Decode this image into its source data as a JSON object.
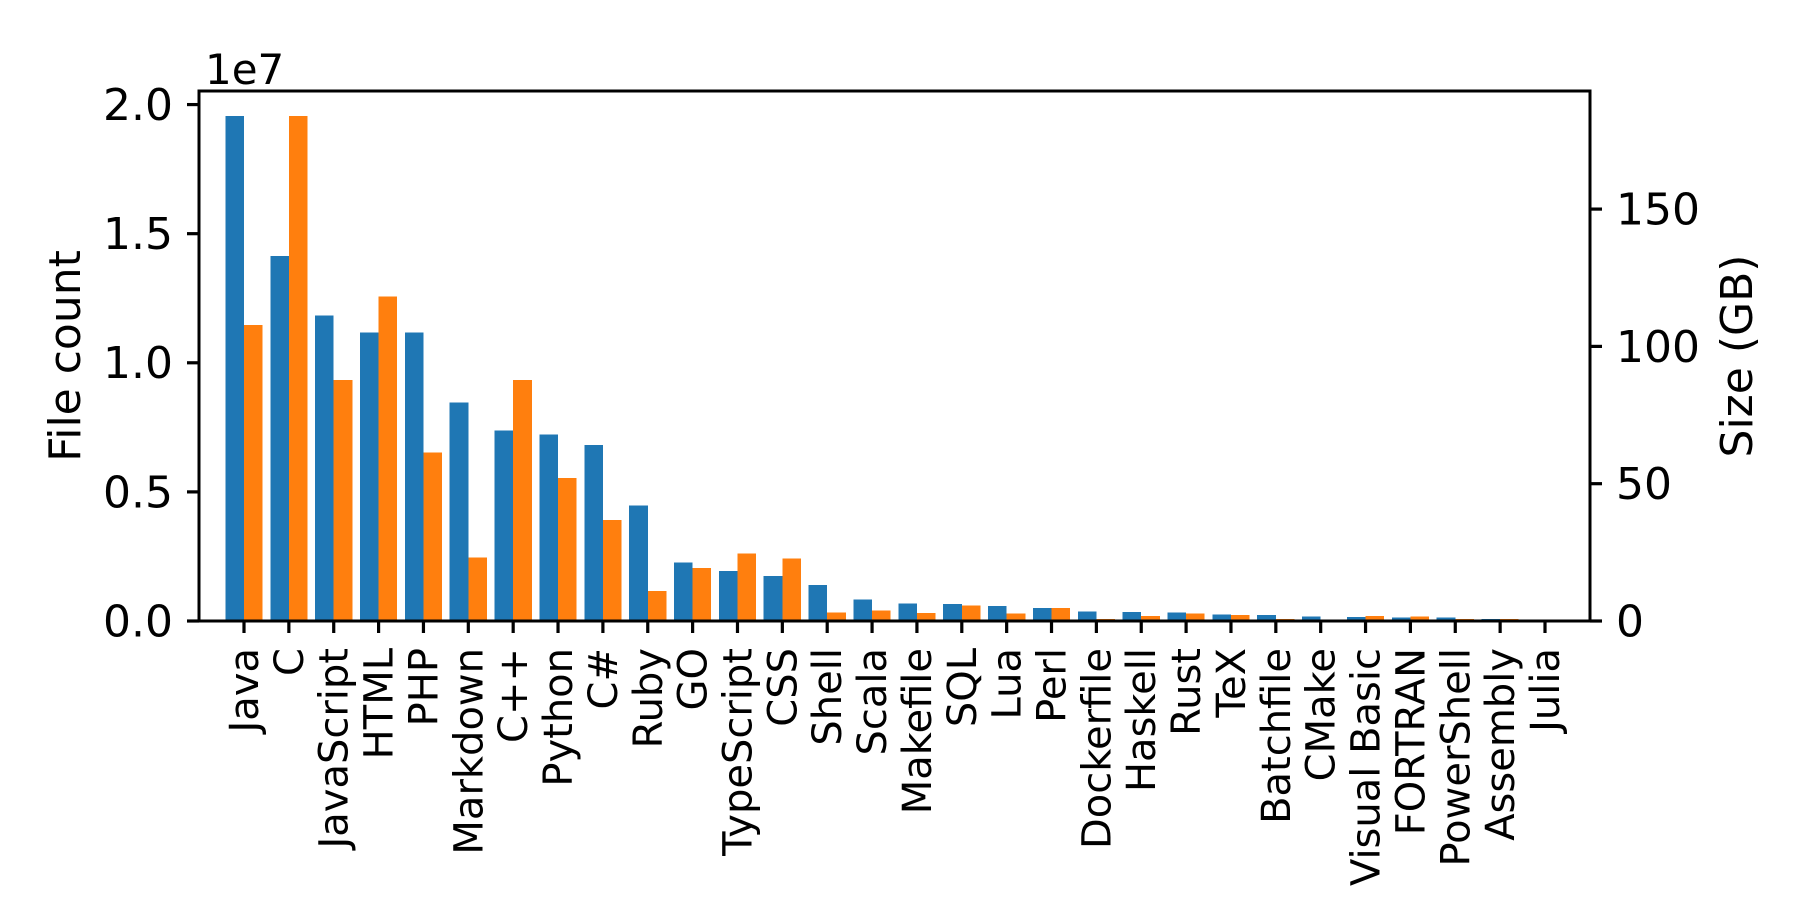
{
  "chart_data": {
    "type": "bar",
    "title": "",
    "categories": [
      "Java",
      "C",
      "JavaScript",
      "HTML",
      "PHP",
      "Markdown",
      "C++",
      "Python",
      "C#",
      "Ruby",
      "GO",
      "TypeScript",
      "CSS",
      "Shell",
      "Scala",
      "Makefile",
      "SQL",
      "Lua",
      "Perl",
      "Dockerfile",
      "Haskell",
      "Rust",
      "TeX",
      "Batchfile",
      "CMake",
      "Visual Basic",
      "FORTRAN",
      "PowerShell",
      "Assembly",
      "Julia"
    ],
    "series": [
      {
        "name": "File count",
        "axis": "left",
        "color": "#1f77b4",
        "values": [
          19548190,
          14143113,
          11839883,
          11178557,
          11177610,
          8464626,
          7380520,
          7226626,
          6811652,
          4473331,
          2265436,
          1940406,
          1734406,
          1385648,
          835755,
          679430,
          656671,
          578554,
          497949,
          366505,
          340623,
          322431,
          251015,
          236945,
          175282,
          155652,
          142038,
          136846,
          82905,
          58317
        ]
      },
      {
        "name": "Size (GB)",
        "axis": "right",
        "color": "#ff7f0e",
        "values": [
          107.7,
          183.83,
          87.82,
          118.12,
          61.41,
          23.09,
          87.73,
          52.03,
          36.83,
          10.95,
          19.28,
          24.59,
          22.67,
          3.01,
          3.87,
          2.92,
          5.67,
          2.81,
          4.7,
          0.71,
          1.85,
          2.68,
          2.15,
          0.7,
          0.54,
          1.91,
          1.62,
          0.69,
          0.78,
          0.29
        ]
      }
    ],
    "left_axis": {
      "label": "File count",
      "color": "#1f77b4",
      "offset_text": "1e7",
      "tick_labels": [
        "0.0",
        "0.5",
        "1.0",
        "1.5",
        "2.0"
      ],
      "tick_values": [
        0,
        5000000,
        10000000,
        15000000,
        20000000
      ],
      "range": [
        0,
        20525600
      ]
    },
    "right_axis": {
      "label": "Size (GB)",
      "color": "#ff7f0e",
      "tick_labels": [
        "0",
        "50",
        "100",
        "150"
      ],
      "tick_values": [
        0,
        50,
        100,
        150
      ],
      "range": [
        0,
        193.0
      ]
    },
    "xlabel": "",
    "grid": false,
    "legend": "none"
  },
  "colors": {
    "file_count_blue": "#1f77b4",
    "size_orange": "#ff7f0e",
    "spine_black": "#000000",
    "background": "#ffffff"
  }
}
